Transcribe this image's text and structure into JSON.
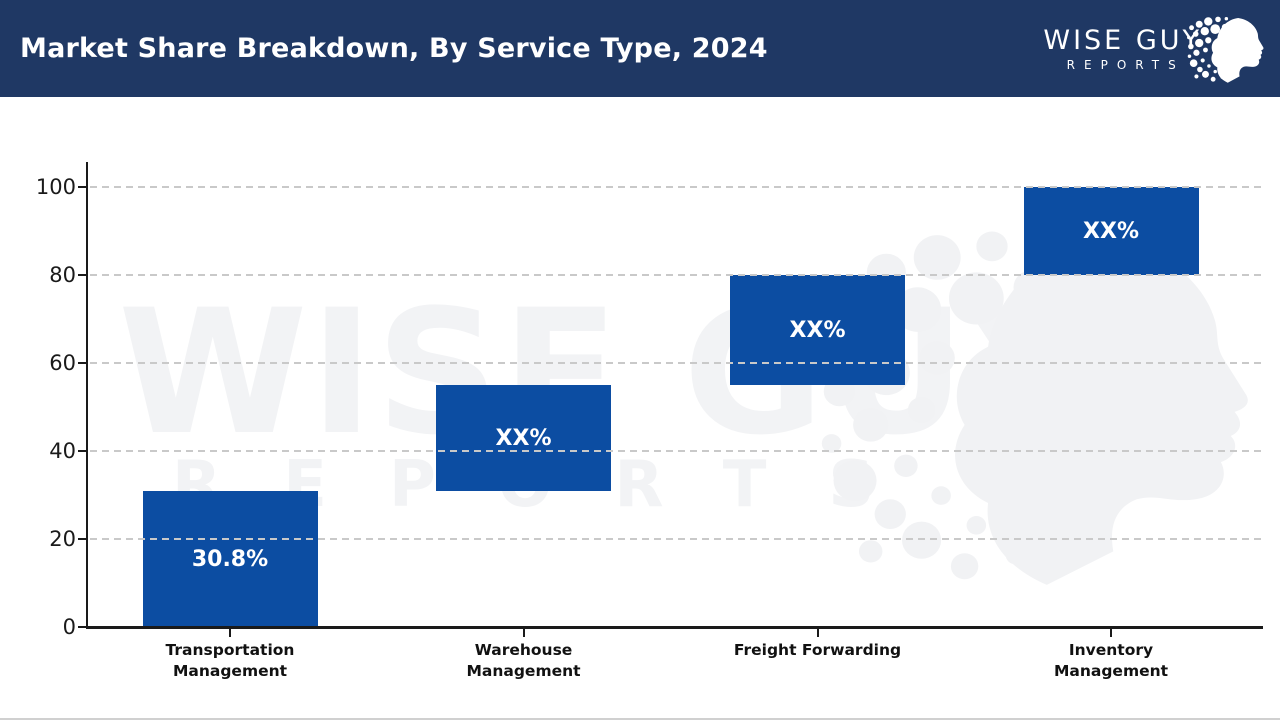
{
  "header": {
    "title": "Market Share Breakdown, By Service Type, 2024",
    "logo": {
      "wordmark": "WISE GUY",
      "subtext": "REPORTS"
    }
  },
  "watermark": {
    "line1": "WISE GUY",
    "line2": "REPORTS"
  },
  "colors": {
    "header_bg": "#1f3864",
    "bar": "#0c4da2",
    "bar_label": "#ffffff",
    "grid": "#c9c9c9",
    "axis": "#1a1a1a",
    "watermark": "#f2f3f5",
    "title_text": "#ffffff"
  },
  "chart_data": {
    "type": "bar",
    "subtype": "waterfall",
    "title": "Market Share Breakdown, By Service Type, 2024",
    "categories": [
      "Transportation Management",
      "Warehouse Management",
      "Freight Forwarding",
      "Inventory Management"
    ],
    "categories_display": [
      [
        "Transportation",
        "Management"
      ],
      [
        "Warehouse",
        "Management"
      ],
      [
        "Freight Forwarding"
      ],
      [
        "Inventory",
        "Management"
      ]
    ],
    "series": [
      {
        "name": "Market Share (%)",
        "segments": [
          {
            "category": "Transportation Management",
            "start": 0,
            "end": 30.8,
            "label": "30.8%"
          },
          {
            "category": "Warehouse Management",
            "start": 30.8,
            "end": 55,
            "label": "XX%"
          },
          {
            "category": "Freight Forwarding",
            "start": 55,
            "end": 80,
            "label": "XX%"
          },
          {
            "category": "Inventory Management",
            "start": 80,
            "end": 100,
            "label": "XX%"
          }
        ]
      }
    ],
    "bar_labels": [
      "30.8%",
      "XX%",
      "XX%",
      "XX%"
    ],
    "yticks": [
      0,
      20,
      40,
      60,
      80,
      100
    ],
    "ylim": [
      0,
      105.5
    ],
    "xlabel": "",
    "ylabel": "",
    "grid": "horizontal-dashed-over-bars",
    "legend": "none"
  }
}
